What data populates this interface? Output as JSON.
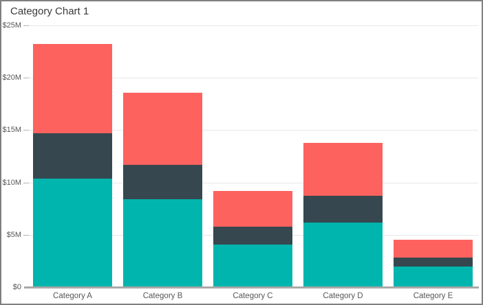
{
  "title": "Category Chart 1",
  "colors": {
    "background": "#ffffff",
    "frame_border": "#7f7f7f",
    "grid": "#e7e7e7",
    "tick": "#b3b3b3",
    "axis_line": "#a9a9a9",
    "axis_label_text": "#565656",
    "title_text": "#3a3a3a"
  },
  "y_axis": {
    "tick_labels": [
      "$0",
      "$5M",
      "$10M",
      "$15M",
      "$20M",
      "$25M"
    ],
    "tick_values_m": [
      0,
      5,
      10,
      15,
      20,
      25
    ]
  },
  "chart_data": {
    "type": "bar",
    "stacked": true,
    "title": "Category Chart 1",
    "categories": [
      "Category A",
      "Category B",
      "Category C",
      "Category D",
      "Category E"
    ],
    "series": [
      {
        "name": "teal",
        "color": "#00b5ad",
        "values_m": [
          10.4,
          8.4,
          4.1,
          6.2,
          2.0
        ]
      },
      {
        "name": "dark-slate",
        "color": "#36474f",
        "values_m": [
          4.3,
          3.3,
          1.7,
          2.5,
          0.85
        ]
      },
      {
        "name": "coral",
        "color": "#fd625f",
        "values_m": [
          8.5,
          6.9,
          3.4,
          5.1,
          1.65
        ]
      }
    ],
    "stack_totals_m": [
      23.2,
      18.6,
      9.2,
      13.8,
      4.5
    ],
    "xlabel": "",
    "ylabel": "",
    "ylim_m": [
      0,
      25
    ],
    "ytick_labels": [
      "$0",
      "$5M",
      "$10M",
      "$15M",
      "$20M",
      "$25M"
    ],
    "grid": true,
    "legend": false
  }
}
